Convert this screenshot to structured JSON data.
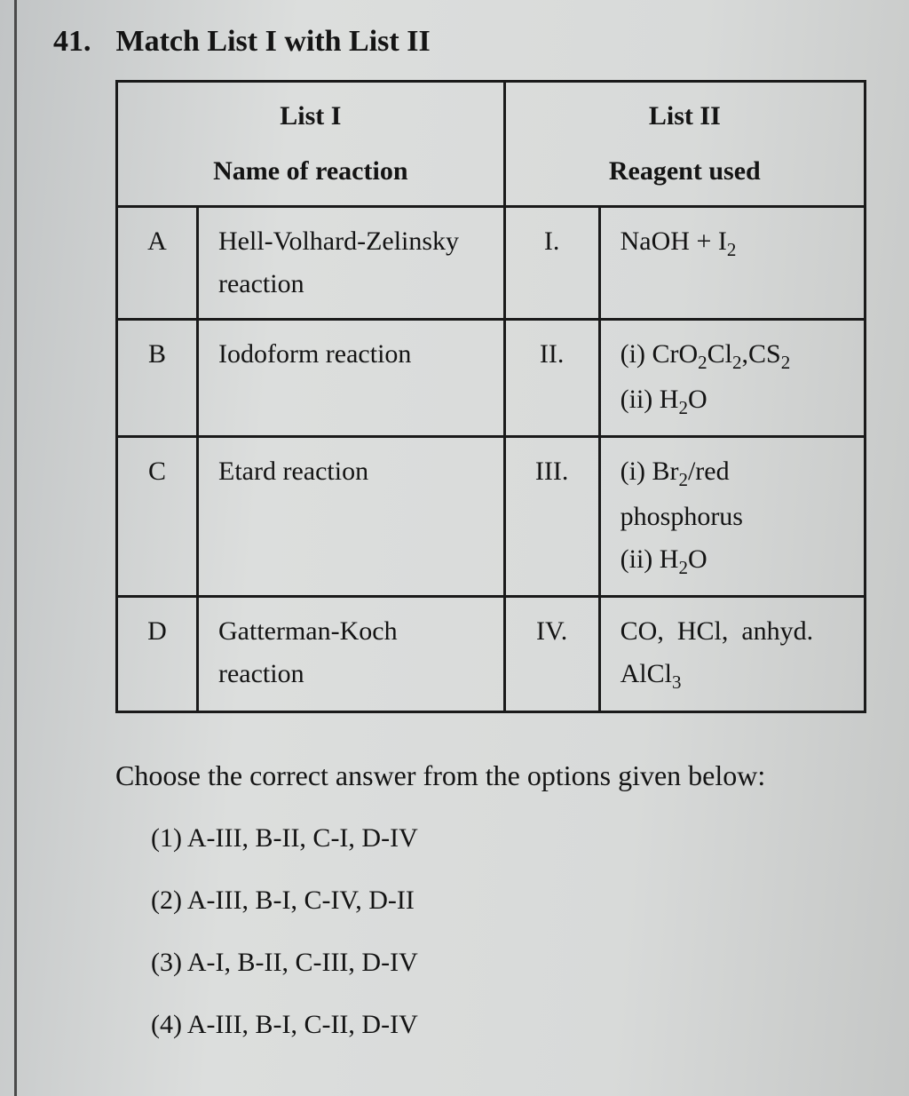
{
  "question": {
    "number": "41.",
    "title": "Match List I with List II"
  },
  "table": {
    "headers": {
      "list1_title": "List I",
      "list1_sub": "Name of reaction",
      "list2_title": "List II",
      "list2_sub": "Reagent used"
    },
    "rows": [
      {
        "labelA": "A",
        "name": "Hell-Volhard-Zelinsky reaction",
        "num": "I.",
        "reagent_html": "NaOH + I<span class=\"sub\">2</span>"
      },
      {
        "labelA": "B",
        "name": "Iodoform reaction",
        "num": "II.",
        "reagent_html": "(i) CrO<span class=\"sub\">2</span>Cl<span class=\"sub\">2</span>,CS<span class=\"sub\">2</span><br>(ii) H<span class=\"sub\">2</span>O"
      },
      {
        "labelA": "C",
        "name": "Etard reaction",
        "num": "III.",
        "reagent_html": "(i) Br<span class=\"sub\">2</span>/red phosphorus<br>(ii) H<span class=\"sub\">2</span>O"
      },
      {
        "labelA": "D",
        "name": "Gatterman-Koch reaction",
        "num": "IV.",
        "reagent_html": "CO,&nbsp;&nbsp;HCl,&nbsp;&nbsp;anhyd.<br>AlCl<span class=\"sub\">3</span>"
      }
    ]
  },
  "prompt": "Choose the correct answer from the options given below:",
  "options": [
    "(1) A-III, B-II, C-I, D-IV",
    "(2) A-III, B-I, C-IV, D-II",
    "(3) A-I, B-II, C-III, D-IV",
    "(4) A-III, B-I, C-II, D-IV"
  ]
}
